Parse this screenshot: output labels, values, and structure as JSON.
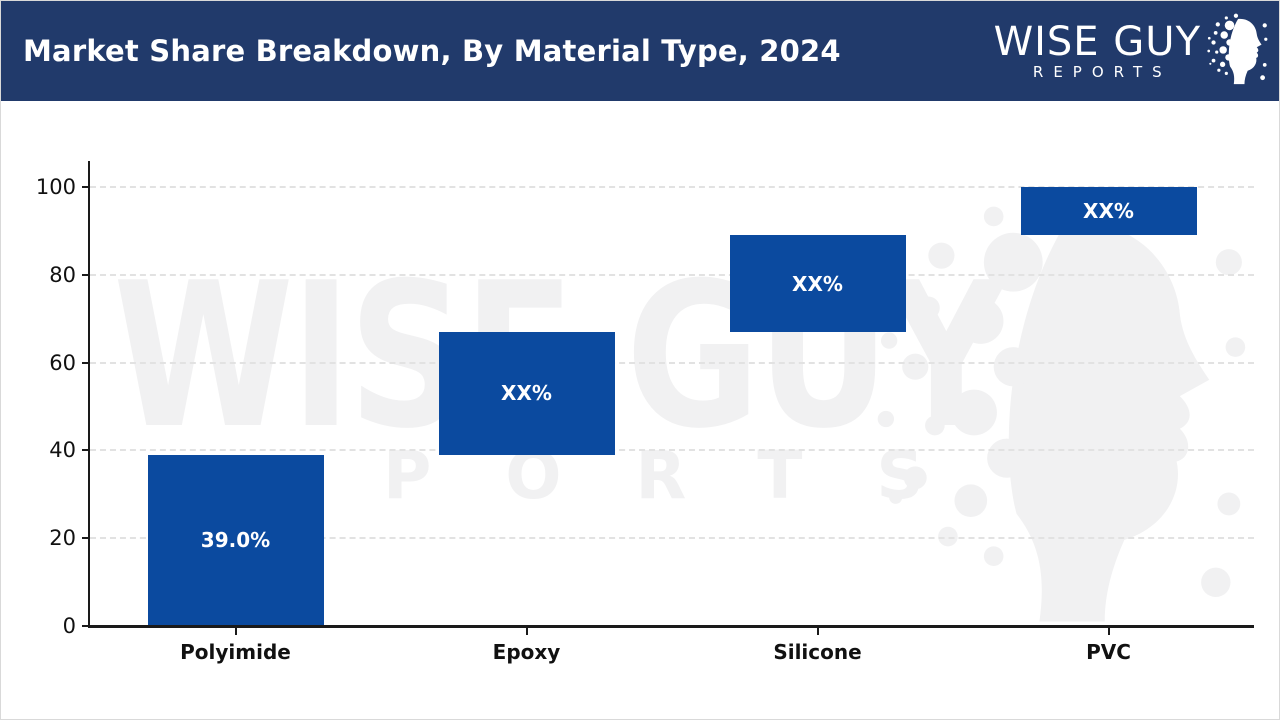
{
  "header": {
    "title": "Market Share Breakdown, By Material Type, 2024",
    "logo": {
      "line1": "WISE GUY",
      "line2": "REPORTS"
    }
  },
  "watermark": {
    "line1": "WISE GUY",
    "line2": "PORTS"
  },
  "colors": {
    "header_bg": "#213a6b",
    "bar_blue": "#0b4a9f",
    "grid": "#e2e2e2",
    "axis": "#1a1a1a",
    "bar_label": "#ffffff",
    "watermark": "#f1f1f2"
  },
  "chart_data": {
    "type": "bar",
    "subtype": "waterfall",
    "title": "Market Share Breakdown, By Material Type, 2024",
    "xlabel": "",
    "ylabel": "",
    "categories": [
      "Polyimide",
      "Epoxy",
      "Silicone",
      "PVC"
    ],
    "segments": [
      {
        "category": "Polyimide",
        "start": 0,
        "end": 39,
        "label": "39.0%"
      },
      {
        "category": "Epoxy",
        "start": 39,
        "end": 67,
        "label": "XX%"
      },
      {
        "category": "Silicone",
        "start": 67,
        "end": 89,
        "label": "XX%"
      },
      {
        "category": "PVC",
        "start": 89,
        "end": 100,
        "label": "XX%"
      }
    ],
    "yticks": [
      0,
      20,
      40,
      60,
      80,
      100
    ],
    "ylim": [
      0,
      100
    ],
    "grid": "horizontal-dashed",
    "legend": "none"
  }
}
